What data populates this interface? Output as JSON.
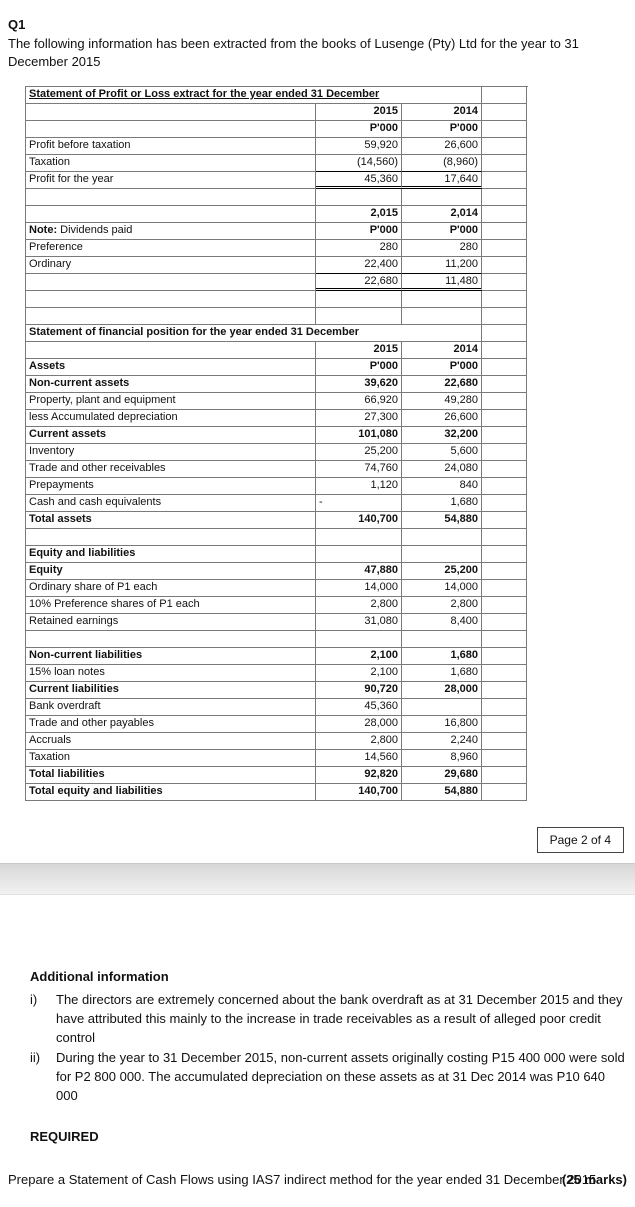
{
  "page": {
    "question_label": "Q1",
    "intro": "The following information has been extracted from the books of Lusenge (Pty) Ltd for the year to 31 December 2015",
    "page_badge": "Page 2 of 4"
  },
  "table": {
    "rows": [
      {
        "cls": "title b ul",
        "label": "Statement of Profit or Loss extract for the year ended 31 December"
      },
      {
        "cls": "b",
        "v1": "2015",
        "v2": "2014"
      },
      {
        "cls": "b",
        "v1": "P'000",
        "v2": "P'000"
      },
      {
        "label": "Profit before taxation",
        "v1": "59,920",
        "v2": "26,600"
      },
      {
        "cls": "u",
        "label": "Taxation",
        "v1": "(14,560)",
        "v2": "(8,960)"
      },
      {
        "cls": "uu",
        "label": "Profit for the year",
        "v1": "45,360",
        "v2": "17,640"
      },
      {},
      {
        "cls": "b",
        "v1": "2,015",
        "v2": "2,014"
      },
      {
        "cls": "nb",
        "prefix": "Note:",
        "label": " Dividends paid",
        "v1": "P'000",
        "v2": "P'000"
      },
      {
        "label": "Preference",
        "v1": "280",
        "v2": "280"
      },
      {
        "cls": "u",
        "label": "Ordinary",
        "v1": "22,400",
        "v2": "11,200"
      },
      {
        "cls": "uu",
        "v1": "22,680",
        "v2": "11,480"
      },
      {},
      {},
      {
        "cls": "title b",
        "label": "Statement of financial position for the year ended 31 December"
      },
      {
        "cls": "b",
        "v1": "2015",
        "v2": "2014"
      },
      {
        "cls": "b",
        "label": "Assets",
        "v1": "P'000",
        "v2": "P'000"
      },
      {
        "cls": "b",
        "label": "Non-current assets",
        "v1": "39,620",
        "v2": "22,680"
      },
      {
        "label": "Property, plant and equipment",
        "v1": "66,920",
        "v2": "49,280"
      },
      {
        "label": "less Accumulated depreciation",
        "v1": "27,300",
        "v2": "26,600"
      },
      {
        "cls": "b",
        "label": "Current assets",
        "v1": "101,080",
        "v2": "32,200"
      },
      {
        "label": "Inventory",
        "v1": "25,200",
        "v2": "5,600"
      },
      {
        "label": "Trade and other receivables",
        "v1": "74,760",
        "v2": "24,080"
      },
      {
        "label": "Prepayments",
        "v1": "1,120",
        "v2": "840"
      },
      {
        "cls": "v1l",
        "label": "Cash and cash equivalents",
        "v1": "-",
        "v2": "1,680"
      },
      {
        "cls": "b",
        "label": "Total assets",
        "v1": "140,700",
        "v2": "54,880"
      },
      {},
      {
        "cls": "b",
        "label": "Equity and liabilities"
      },
      {
        "cls": "b",
        "label": "Equity",
        "v1": "47,880",
        "v2": "25,200"
      },
      {
        "label": "Ordinary share of P1 each",
        "v1": "14,000",
        "v2": "14,000"
      },
      {
        "label": "10% Preference shares of P1 each",
        "v1": "2,800",
        "v2": "2,800"
      },
      {
        "label": "Retained earnings",
        "v1": "31,080",
        "v2": "8,400"
      },
      {},
      {
        "cls": "b",
        "label": "Non-current liabilities",
        "v1": "2,100",
        "v2": "1,680"
      },
      {
        "label": "15% loan notes",
        "v1": "2,100",
        "v2": "1,680"
      },
      {
        "cls": "b",
        "label": "Current liabilities",
        "v1": "90,720",
        "v2": "28,000"
      },
      {
        "label": "Bank overdraft",
        "v1": "45,360",
        "v2": ""
      },
      {
        "label": "Trade and other payables",
        "v1": "28,000",
        "v2": "16,800"
      },
      {
        "label": "Accruals",
        "v1": "2,800",
        "v2": "2,240"
      },
      {
        "label": "Taxation",
        "v1": "14,560",
        "v2": "8,960"
      },
      {
        "cls": "b",
        "label": "Total liabilities",
        "v1": "92,820",
        "v2": "29,680"
      },
      {
        "cls": "b",
        "label": "Total equity and liabilities",
        "v1": "140,700",
        "v2": "54,880"
      }
    ]
  },
  "additional": {
    "heading": "Additional information",
    "items": [
      {
        "marker": "i)",
        "text": "The directors are extremely concerned about the bank overdraft as at 31 December 2015 and they have attributed this mainly to the increase in trade receivables as a result of alleged poor credit control"
      },
      {
        "marker": "ii)",
        "text": "During the year to 31 December 2015, non-current assets originally costing P15 400 000 were sold for P2 800 000. The accumulated depreciation on these assets as at 31 Dec 2014 was P10 640 000"
      }
    ],
    "required_heading": "REQUIRED",
    "task_text": "Prepare a Statement of Cash Flows using IAS7 indirect method for the year ended 31 December 2015",
    "marks": "(25 marks)"
  }
}
